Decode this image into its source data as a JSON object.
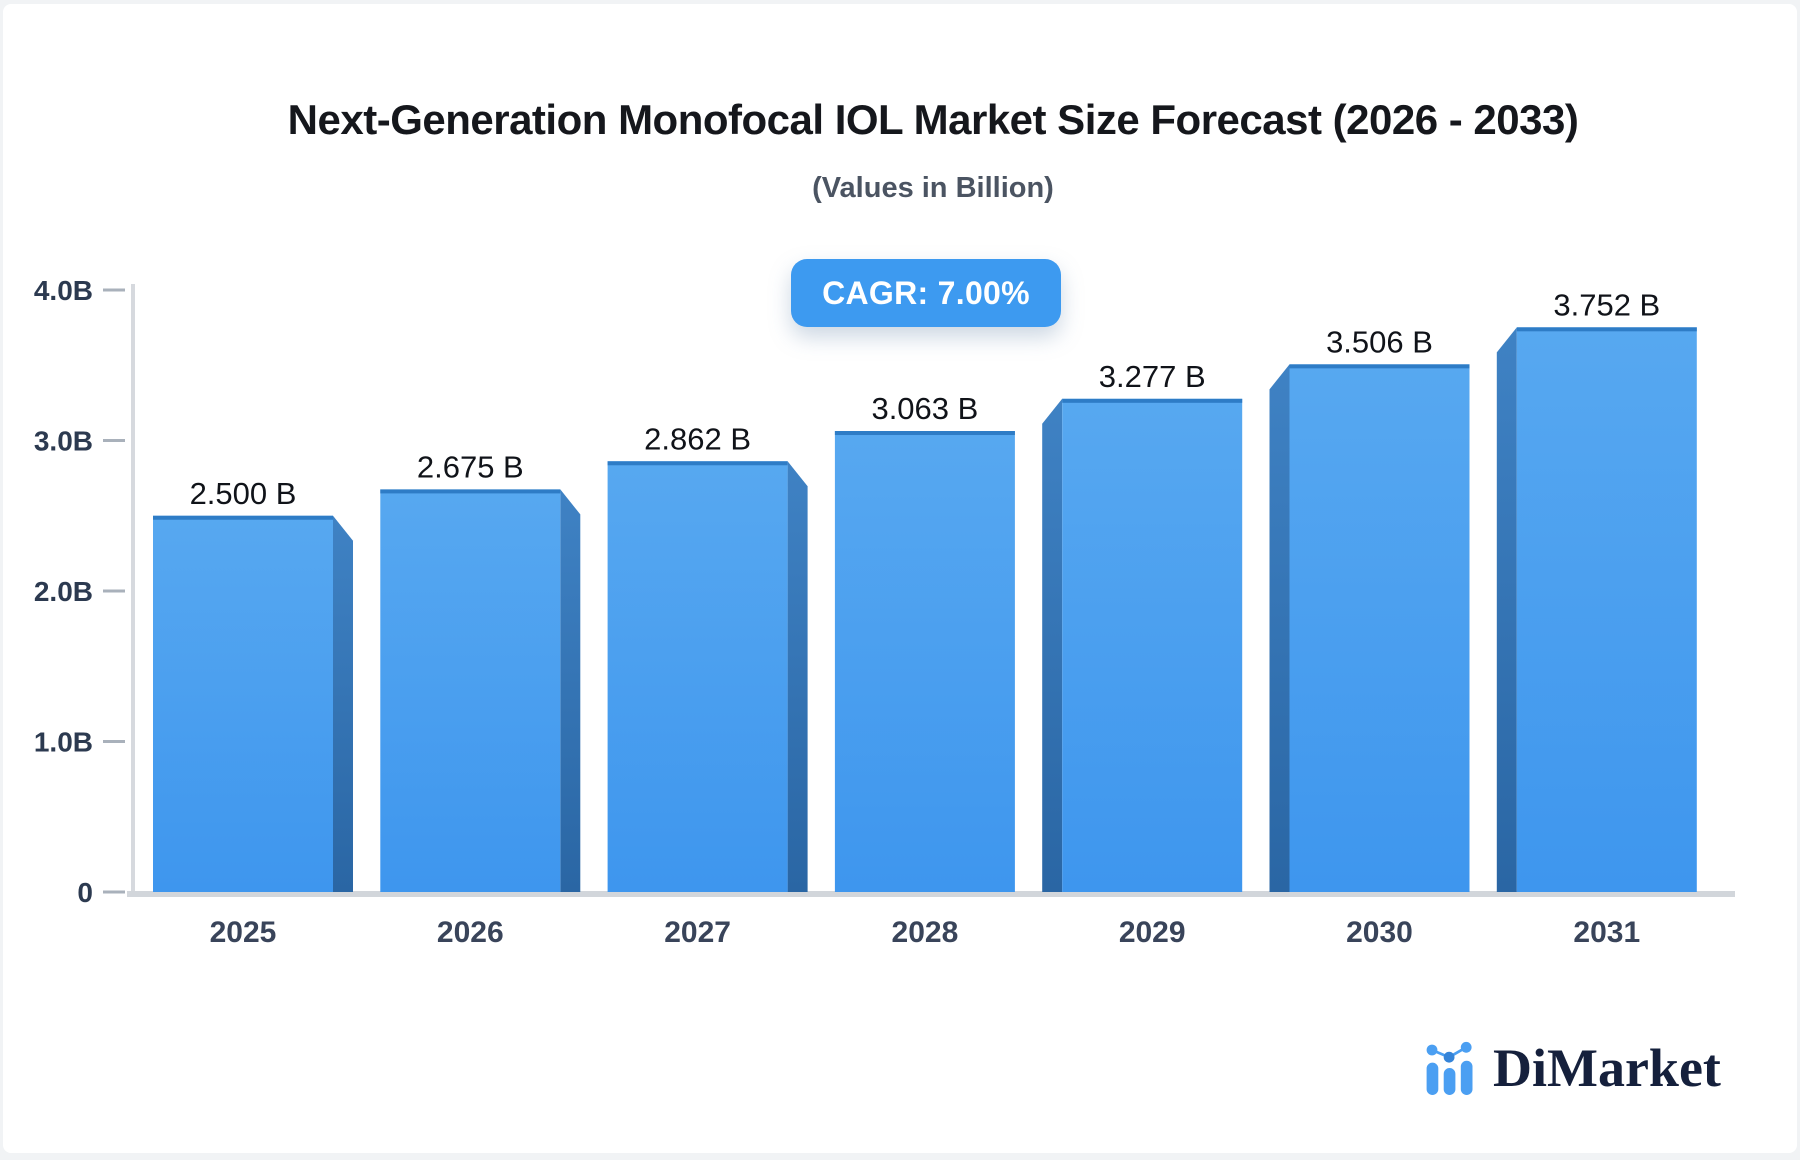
{
  "header": {
    "title": "Next-Generation Monofocal IOL Market Size Forecast (2026 - 2033)",
    "subtitle": "(Values in Billion)"
  },
  "badge": {
    "label": "CAGR: 7.00%"
  },
  "logo": {
    "text": "DiMarket",
    "icon": "bar-chart-trend-icon"
  },
  "colors": {
    "accent_blue": "#3d9af0",
    "bar_face_top": "#57a8f0",
    "bar_face_bottom": "#3e96ee",
    "bar_side_top": "#3f82c4",
    "bar_side_bottom": "#2a66a4",
    "bar_top_edge": "#2e7cc6",
    "axis_line": "#d6d9de",
    "logo_navy": "#15203c"
  },
  "chart_data": {
    "type": "bar",
    "title": "Next-Generation Monofocal IOL Market Size Forecast (2026 - 2033)",
    "subtitle": "(Values in Billion)",
    "categories": [
      "2025",
      "2026",
      "2027",
      "2028",
      "2029",
      "2030",
      "2031"
    ],
    "values": [
      2.5,
      2.675,
      2.862,
      3.063,
      3.277,
      3.506,
      3.752
    ],
    "bar_labels": [
      "2.500 B",
      "2.675 B",
      "2.862 B",
      "3.063 B",
      "3.277 B",
      "3.506 B",
      "3.752 B"
    ],
    "xlabel": "",
    "ylabel": "",
    "ylim": [
      0,
      4
    ],
    "yticks": [
      {
        "label": "0",
        "value": 0
      },
      {
        "label": "1.0B",
        "value": 1
      },
      {
        "label": "2.0B",
        "value": 2
      },
      {
        "label": "3.0B",
        "value": 3
      },
      {
        "label": "4.0B",
        "value": 4
      }
    ],
    "grid": false,
    "legend": null,
    "annotation": "CAGR: 7.00%"
  }
}
